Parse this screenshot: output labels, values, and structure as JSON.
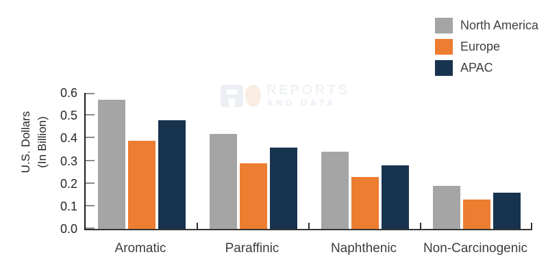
{
  "chart_data": {
    "type": "bar",
    "title": "",
    "categories": [
      "Aromatic",
      "Paraffinic",
      "Naphthenic",
      "Non-Carcinogenic"
    ],
    "series": [
      {
        "name": "North America",
        "color": "#a5a5a5",
        "values": [
          0.57,
          0.42,
          0.34,
          0.19
        ]
      },
      {
        "name": "Europe",
        "color": "#ed7d31",
        "values": [
          0.39,
          0.29,
          0.23,
          0.13
        ]
      },
      {
        "name": "APAC",
        "color": "#17334e",
        "values": [
          0.48,
          0.36,
          0.28,
          0.16
        ]
      }
    ],
    "xlabel": "",
    "ylabel_line1": "U.S. Dollars",
    "ylabel_line2": "(In Billion)",
    "ylim": [
      0,
      0.6
    ],
    "yticks": [
      "0.0",
      "0.1",
      "0.2",
      "0.3",
      "0.4",
      "0.5",
      "0.6"
    ],
    "grid": false,
    "legend_position": "top-right"
  },
  "watermark": {
    "logo": "reports-and-data-logo",
    "line1": "REPORTS",
    "line2": "AND DATA"
  }
}
